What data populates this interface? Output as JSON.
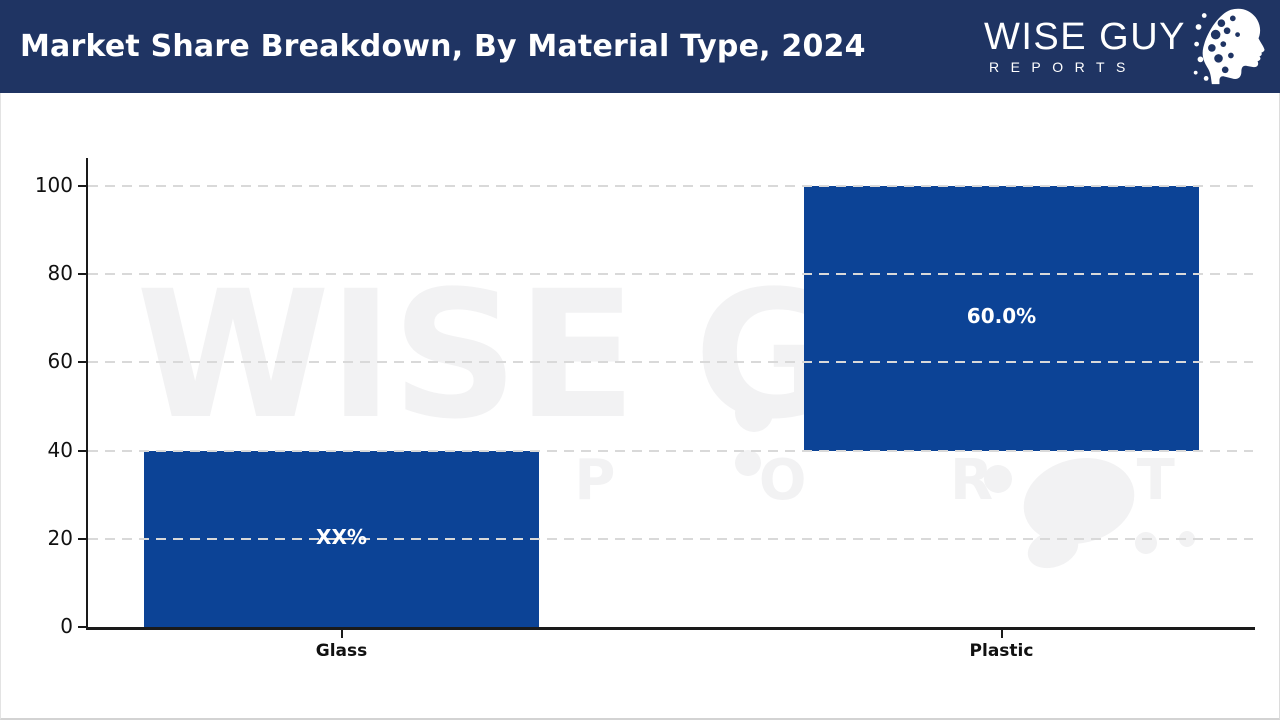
{
  "header": {
    "title": "Market Share Breakdown, By Material Type, 2024",
    "logo": {
      "line1": "WISE GUY",
      "line2": "REPORTS"
    }
  },
  "watermark": {
    "line1": "WISE GUY",
    "line2": "R E P O R T S"
  },
  "colors": {
    "header_bg": "#1f3463",
    "bar_blue": "#0c4396",
    "gridline": "#d9d9d9",
    "watermark_gray": "#f2f2f3",
    "axis_black": "#1a1a1a",
    "value_label_white": "#ffffff"
  },
  "chart_data": {
    "type": "bar",
    "title": "Market Share Breakdown, By Material Type, 2024",
    "categories": [
      "Glass",
      "Plastic"
    ],
    "bars": [
      {
        "category": "Glass",
        "start": 0,
        "end": 40,
        "value": 40,
        "label": "XX%"
      },
      {
        "category": "Plastic",
        "start": 40,
        "end": 100,
        "value": 60,
        "label": "60.0%"
      }
    ],
    "style": "stacked-waterfall (each bar begins where previous ends)",
    "ylim": [
      0,
      100
    ],
    "yticks": [
      0,
      20,
      40,
      60,
      80,
      100
    ],
    "xlabel": "",
    "ylabel": "",
    "grid": "horizontal dashed",
    "legend": "none"
  }
}
